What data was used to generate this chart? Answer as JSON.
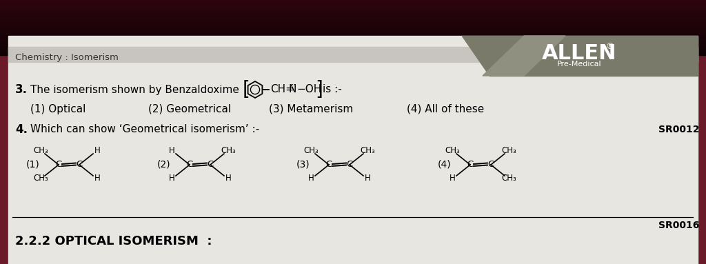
{
  "bg_photo_color": "#6b1a2a",
  "header_text": "Chemistry : Isomerism",
  "header_bg": "#c8c5be",
  "allen_text": "ALLEN",
  "allen_sup": "®",
  "allen_sub": "Pre-Medical",
  "q3_num": "3.",
  "q3_main": "The isomerism shown by Benzaldoxime",
  "q3_end": "is :-",
  "opt1": "(1) Optical",
  "opt2": "(2) Geometrical",
  "opt3": "(3) Metamerism",
  "opt4": "(4) All of these",
  "q4_num": "4.",
  "q4_text": "Which can show ‘Geometrical isomerism’ :-",
  "sr0012": "SR0012",
  "sr0016": "SR0016",
  "section_title": "2.2.2 OPTICAL ISOMERISM  :",
  "white_bg": "#f5f4f0",
  "trap_color": "#7a7a6a",
  "page_white": "#e8e6e0"
}
